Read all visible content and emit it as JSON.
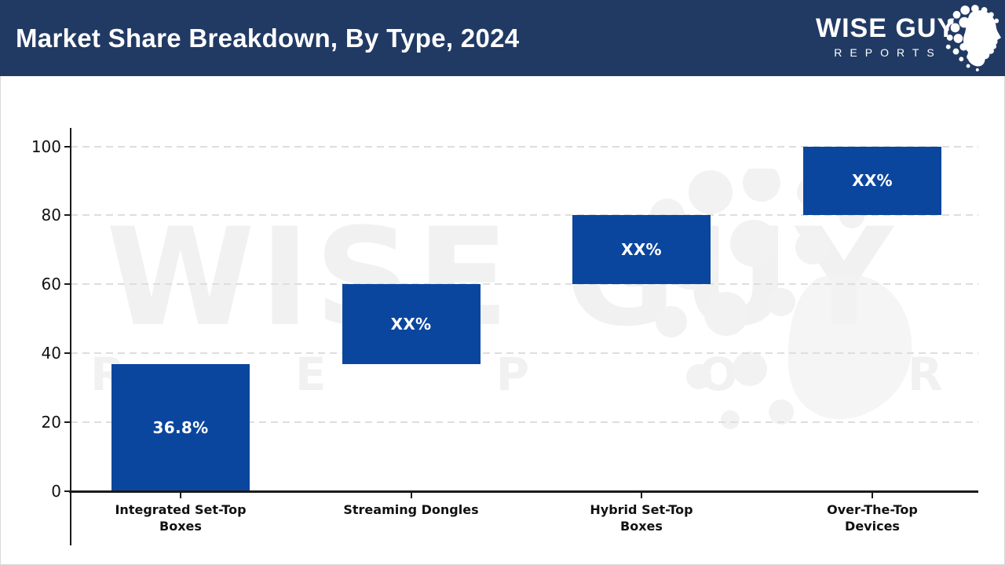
{
  "header": {
    "title": "Market Share Breakdown, By Type, 2024",
    "logo": {
      "line1": "WISE GUY",
      "line2": "REPORTS"
    }
  },
  "watermark": {
    "line1": "WISE GUY",
    "line2": "R E P O R T S"
  },
  "colors": {
    "header_bg": "#213a64",
    "bar": "#0b469e",
    "bar_label_text": "#ffffff",
    "grid": "#dedede",
    "axis": "#1a1a1a",
    "watermark": "#f1f1f1"
  },
  "chart_data": {
    "type": "bar",
    "subtype": "waterfall",
    "title": "Market Share Breakdown, By Type, 2024",
    "xlabel": "",
    "ylabel": "",
    "ylim": [
      0,
      105
    ],
    "yticks": [
      0,
      20,
      40,
      60,
      80,
      100
    ],
    "grid": "horizontal-dashed",
    "legend": "none",
    "categories": [
      "Integrated Set-Top Boxes",
      "Streaming Dongles",
      "Hybrid Set-Top Boxes",
      "Over-The-Top Devices"
    ],
    "category_lines": [
      [
        "Integrated Set-Top",
        "Boxes"
      ],
      [
        "Streaming Dongles"
      ],
      [
        "Hybrid Set-Top",
        "Boxes"
      ],
      [
        "Over-The-Top",
        "Devices"
      ]
    ],
    "segments": [
      {
        "category": "Integrated Set-Top Boxes",
        "start": 0,
        "end": 36.8,
        "label": "36.8%"
      },
      {
        "category": "Streaming Dongles",
        "start": 36.8,
        "end": 60,
        "label": "XX%"
      },
      {
        "category": "Hybrid Set-Top Boxes",
        "start": 60,
        "end": 80,
        "label": "XX%"
      },
      {
        "category": "Over-The-Top Devices",
        "start": 80,
        "end": 100,
        "label": "XX%"
      }
    ]
  }
}
